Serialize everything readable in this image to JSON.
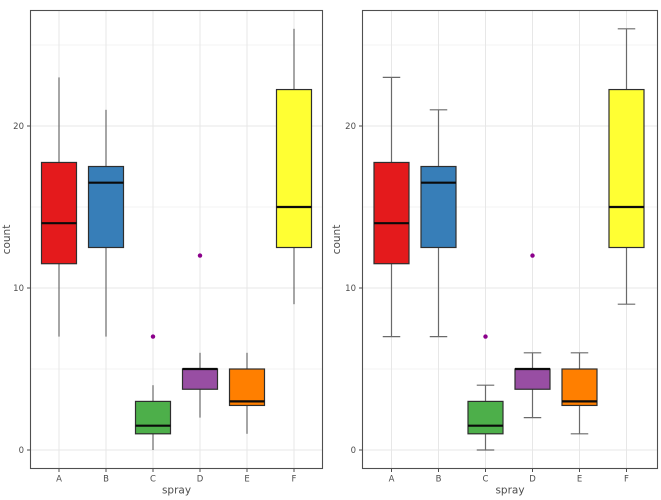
{
  "figure": {
    "description": "Two side-by-side boxplots of insect counts by spray type; right plot adds whisker end caps (errorbars), otherwise identical."
  },
  "style": {
    "background": "#ffffff",
    "panel_background": "#ffffff",
    "panel_border": "#4f4f4f",
    "grid_major": "#e7e7e7",
    "grid_minor": "#f3f3f3",
    "text_color": "#4d4d4d",
    "tick_mark_color": "#4d4d4d",
    "whisker_color": "#6a6a6a",
    "box_stroke": "#2e2e2e",
    "median_color": "#0a0a0a",
    "outlier_color": "#8B008B"
  },
  "chart_data": [
    {
      "type": "boxplot",
      "name": "left-boxplot",
      "title": "",
      "xlabel": "spray",
      "ylabel": "count",
      "categories": [
        "A",
        "B",
        "C",
        "D",
        "E",
        "F"
      ],
      "y_ticks": [
        0,
        10,
        20
      ],
      "y_minor_ticks": [
        5,
        15,
        25
      ],
      "ylim": [
        -1.1,
        27.2
      ],
      "grid": true,
      "legend_position": "none",
      "whisker_caps": false,
      "box_fill_colors": [
        "#E41A1C",
        "#377EB8",
        "#4DAF4A",
        "#984EA3",
        "#FF7F00",
        "#FFFF33"
      ],
      "boxes": [
        {
          "category": "A",
          "whisker_min": 7,
          "q1": 11.5,
          "median": 14,
          "q3": 17.75,
          "whisker_max": 23,
          "outliers": []
        },
        {
          "category": "B",
          "whisker_min": 7,
          "q1": 12.5,
          "median": 16.5,
          "q3": 17.5,
          "whisker_max": 21,
          "outliers": []
        },
        {
          "category": "C",
          "whisker_min": 0,
          "q1": 1,
          "median": 1.5,
          "q3": 3,
          "whisker_max": 4,
          "outliers": [
            7
          ]
        },
        {
          "category": "D",
          "whisker_min": 2,
          "q1": 3.75,
          "median": 5,
          "q3": 5,
          "whisker_max": 6,
          "outliers": [
            12
          ]
        },
        {
          "category": "E",
          "whisker_min": 1,
          "q1": 2.75,
          "median": 3,
          "q3": 5,
          "whisker_max": 6,
          "outliers": []
        },
        {
          "category": "F",
          "whisker_min": 9,
          "q1": 12.5,
          "median": 15,
          "q3": 22.25,
          "whisker_max": 26,
          "outliers": []
        }
      ]
    },
    {
      "type": "boxplot",
      "name": "right-boxplot",
      "title": "",
      "xlabel": "spray",
      "ylabel": "count",
      "categories": [
        "A",
        "B",
        "C",
        "D",
        "E",
        "F"
      ],
      "y_ticks": [
        0,
        10,
        20
      ],
      "y_minor_ticks": [
        5,
        15,
        25
      ],
      "ylim": [
        -1.1,
        27.2
      ],
      "grid": true,
      "legend_position": "none",
      "whisker_caps": true,
      "box_fill_colors": [
        "#E41A1C",
        "#377EB8",
        "#4DAF4A",
        "#984EA3",
        "#FF7F00",
        "#FFFF33"
      ],
      "boxes": [
        {
          "category": "A",
          "whisker_min": 7,
          "q1": 11.5,
          "median": 14,
          "q3": 17.75,
          "whisker_max": 23,
          "outliers": []
        },
        {
          "category": "B",
          "whisker_min": 7,
          "q1": 12.5,
          "median": 16.5,
          "q3": 17.5,
          "whisker_max": 21,
          "outliers": []
        },
        {
          "category": "C",
          "whisker_min": 0,
          "q1": 1,
          "median": 1.5,
          "q3": 3,
          "whisker_max": 4,
          "outliers": [
            7
          ]
        },
        {
          "category": "D",
          "whisker_min": 2,
          "q1": 3.75,
          "median": 5,
          "q3": 5,
          "whisker_max": 6,
          "outliers": [
            12
          ]
        },
        {
          "category": "E",
          "whisker_min": 1,
          "q1": 2.75,
          "median": 3,
          "q3": 5,
          "whisker_max": 6,
          "outliers": []
        },
        {
          "category": "F",
          "whisker_min": 9,
          "q1": 12.5,
          "median": 15,
          "q3": 22.25,
          "whisker_max": 26,
          "outliers": []
        }
      ]
    }
  ]
}
